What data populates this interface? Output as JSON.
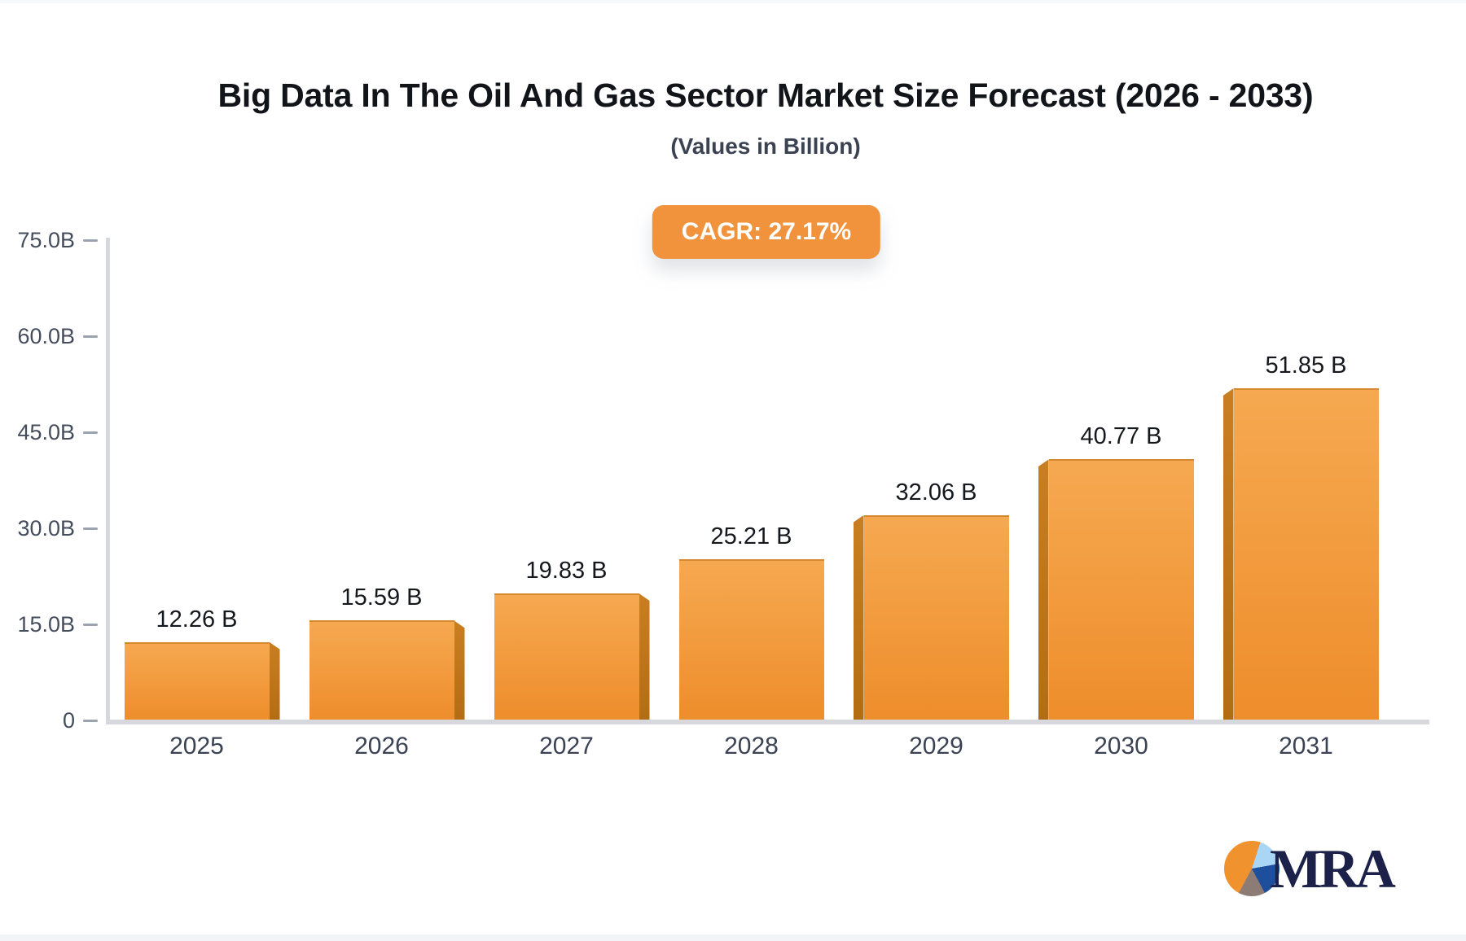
{
  "page": {
    "title": "Big Data In The Oil And Gas Sector Market Size Forecast (2026 - 2033)",
    "subtitle": "(Values in Billion)",
    "cagr_badge": "CAGR: 27.17%"
  },
  "chart_data": {
    "type": "bar",
    "title": "Big Data In The Oil And Gas Sector Market Size Forecast (2026 - 2033)",
    "subtitle": "(Values in Billion)",
    "cagr": "27.17%",
    "categories": [
      "2025",
      "2026",
      "2027",
      "2028",
      "2029",
      "2030",
      "2031"
    ],
    "values": [
      12.26,
      15.59,
      19.83,
      25.21,
      32.06,
      40.77,
      51.85
    ],
    "value_labels": [
      "12.26 B",
      "15.59 B",
      "19.83 B",
      "25.21 B",
      "32.06 B",
      "40.77 B",
      "51.85 B"
    ],
    "xlabel": "",
    "ylabel": "",
    "ylim": [
      0,
      75
    ],
    "yticks": [
      {
        "value": 0,
        "label": "0"
      },
      {
        "value": 15,
        "label": "15.0B"
      },
      {
        "value": 30,
        "label": "30.0B"
      },
      {
        "value": 45,
        "label": "45.0B"
      },
      {
        "value": 60,
        "label": "60.0B"
      },
      {
        "value": 75,
        "label": "75.0B"
      }
    ],
    "grid": false,
    "legend_position": "none",
    "bar_style": "3d, darker side faces angled toward chart center"
  },
  "colors": {
    "accent": "#F1923C",
    "bar-top": "#F6A951",
    "bar-bottom": "#EE8D2B",
    "bar-side": "#C0761B",
    "axis-line": "#D6D8DE",
    "tick-dash": "#9BA2B0",
    "text-dark": "#15181D",
    "text-slate": "#3B4353",
    "logo-navy": "#1B2148",
    "logo-orange": "#F0922E",
    "logo-lightblue": "#A9D6F5",
    "logo-blue": "#1E4F9C",
    "logo-gray": "#8D7C76"
  },
  "logo": {
    "text": "MRA",
    "icon": "pie-chart-icon"
  }
}
